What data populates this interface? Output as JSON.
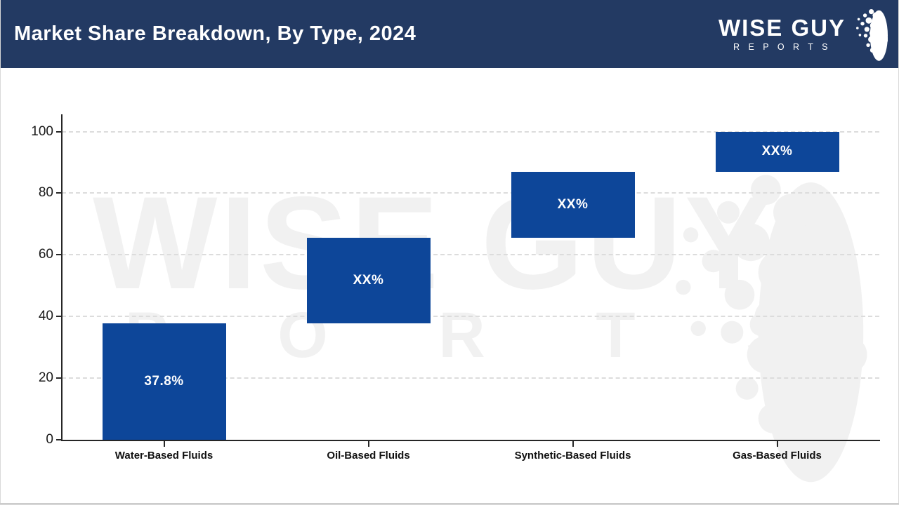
{
  "header": {
    "title": "Market Share Breakdown, By Type, 2024",
    "bg_color": "#233a63",
    "logo": {
      "line1": "WISE GUY",
      "line2": "R E P O R T S"
    }
  },
  "watermark": {
    "line1": "WISE GUY",
    "line2": "P O R T S"
  },
  "chart_data": {
    "type": "bar",
    "subtype": "floating-waterfall",
    "title": "Market Share Breakdown, By Type, 2024",
    "categories": [
      "Water-Based Fluids",
      "Oil-Based Fluids",
      "Synthetic-Based Fluids",
      "Gas-Based Fluids"
    ],
    "segments": [
      {
        "category": "Water-Based Fluids",
        "start": 0,
        "end": 37.8,
        "label": "37.8%"
      },
      {
        "category": "Oil-Based Fluids",
        "start": 37.8,
        "end": 65.5,
        "label": "XX%"
      },
      {
        "category": "Synthetic-Based Fluids",
        "start": 65.5,
        "end": 87,
        "label": "XX%"
      },
      {
        "category": "Gas-Based Fluids",
        "start": 87,
        "end": 100,
        "label": "XX%"
      }
    ],
    "xlabel": "",
    "ylabel": "",
    "ylim": [
      0,
      100
    ],
    "yticks": [
      0,
      20,
      40,
      60,
      80,
      100
    ],
    "grid": "horizontal-dashed",
    "legend": "none",
    "bar_color": "#0d4699",
    "bar_label_color": "#ffffff"
  }
}
